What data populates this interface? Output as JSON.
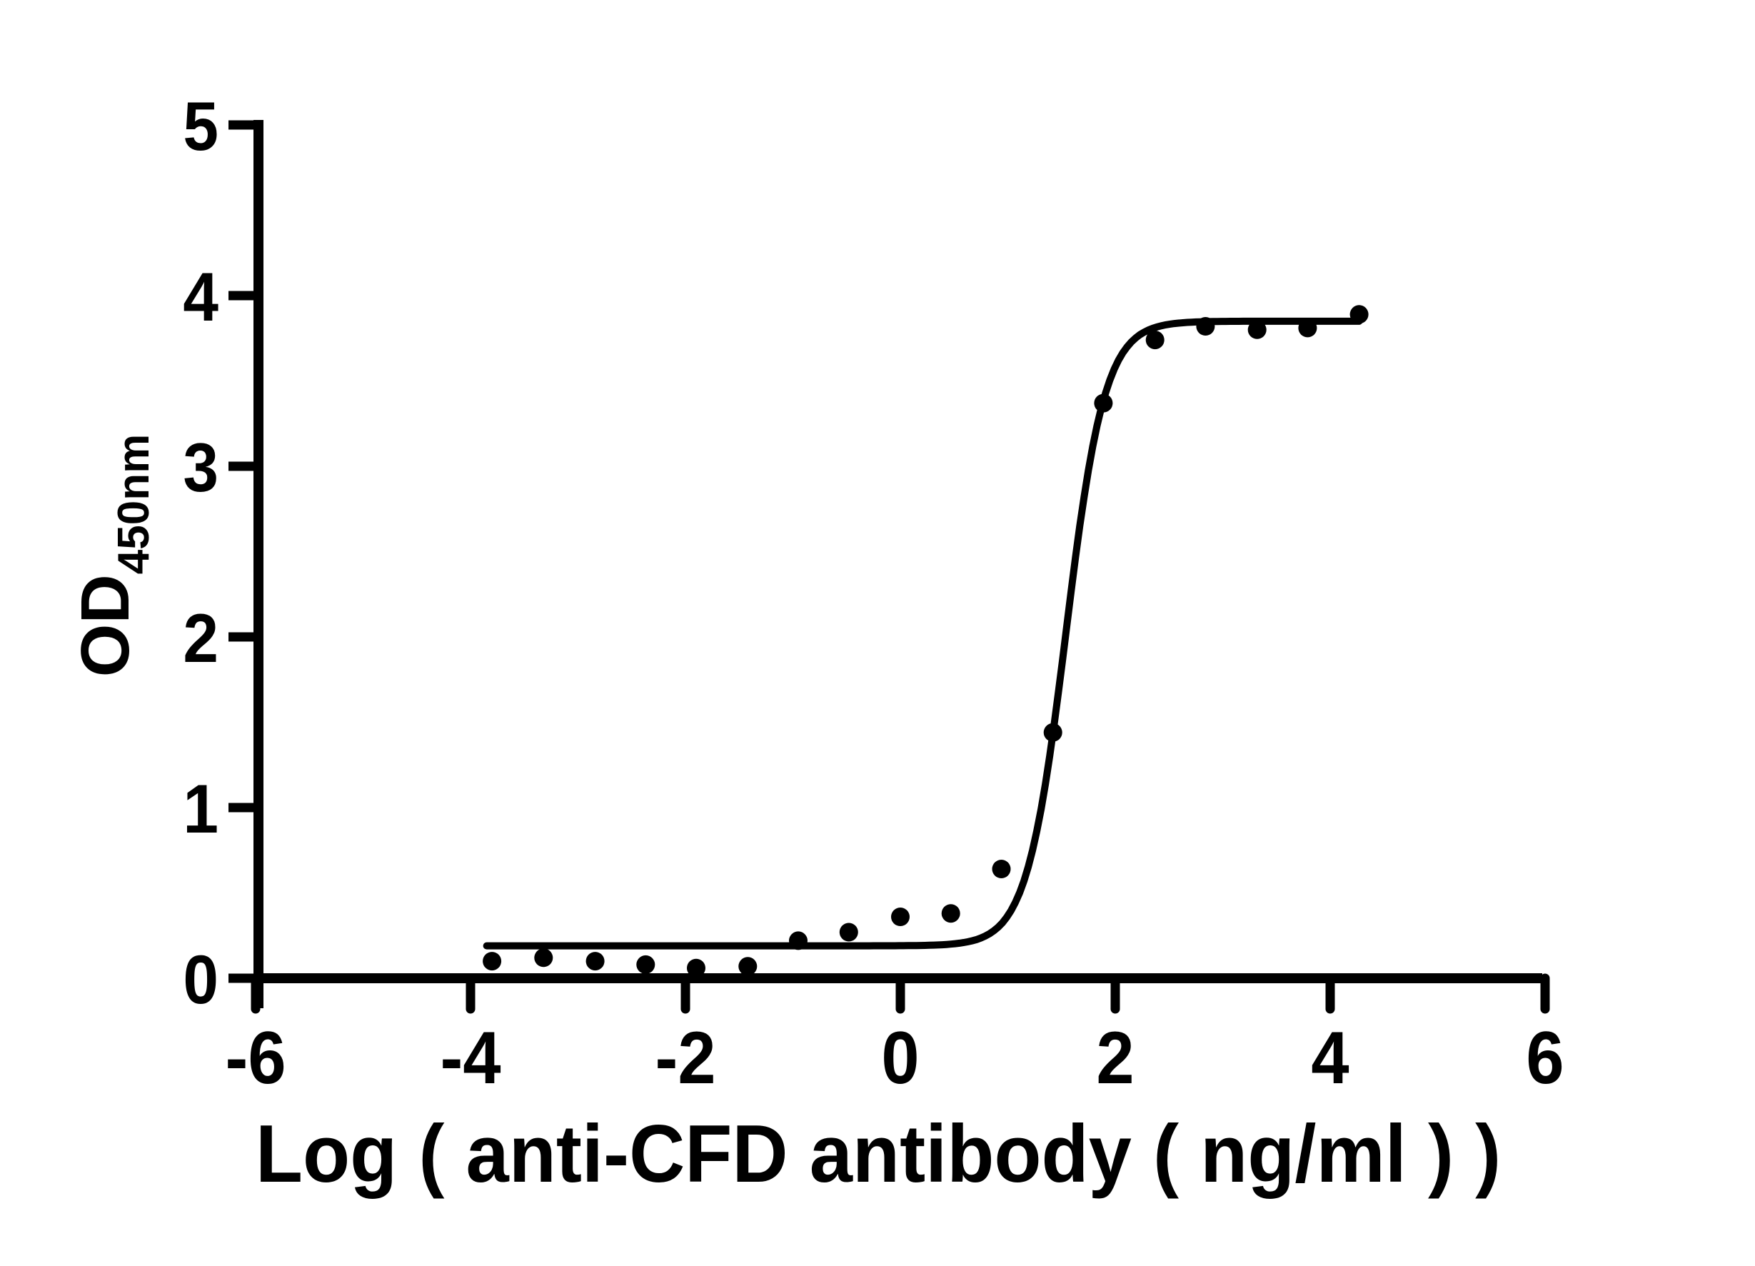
{
  "chart_data": {
    "type": "scatter",
    "title": "",
    "xlabel": "Log ( anti-CFD antibody ( ng/ml )   )",
    "ylabel_text": "OD",
    "ylabel_subscript": "450nm",
    "xlim": [
      -6,
      6
    ],
    "ylim": [
      0,
      5
    ],
    "x_ticks": [
      -6,
      -4,
      -2,
      0,
      2,
      4,
      6
    ],
    "y_ticks": [
      0,
      1,
      2,
      3,
      4,
      5
    ],
    "grid": false,
    "legend": "none",
    "background_color": "#ffffff",
    "axis_color": "#000000",
    "marker_color": "#000000",
    "curve_color": "#000000",
    "points": [
      {
        "x": -3.8,
        "y": 0.1
      },
      {
        "x": -3.32,
        "y": 0.12
      },
      {
        "x": -2.84,
        "y": 0.1
      },
      {
        "x": -2.37,
        "y": 0.08
      },
      {
        "x": -1.9,
        "y": 0.06
      },
      {
        "x": -1.42,
        "y": 0.07
      },
      {
        "x": -0.95,
        "y": 0.22
      },
      {
        "x": -0.48,
        "y": 0.27
      },
      {
        "x": 0.0,
        "y": 0.36
      },
      {
        "x": 0.47,
        "y": 0.38
      },
      {
        "x": 0.94,
        "y": 0.64
      },
      {
        "x": 1.42,
        "y": 1.44
      },
      {
        "x": 1.89,
        "y": 3.37
      },
      {
        "x": 2.37,
        "y": 3.74
      },
      {
        "x": 2.84,
        "y": 3.82
      },
      {
        "x": 3.32,
        "y": 3.8
      },
      {
        "x": 3.79,
        "y": 3.81
      },
      {
        "x": 4.27,
        "y": 3.89
      }
    ],
    "fit_curve": {
      "model": "4PL",
      "bottom": 0.19,
      "top": 3.85,
      "logEC50": 1.54,
      "hillslope": 2.4,
      "x_start": -3.85,
      "x_end": 4.27
    }
  }
}
